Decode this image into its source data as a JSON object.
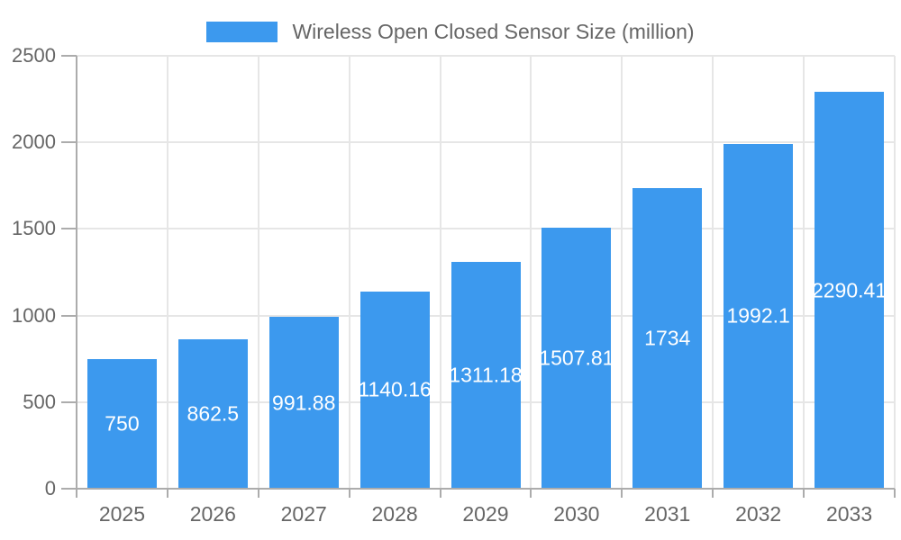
{
  "chart_data": {
    "type": "bar",
    "title": "Wireless Open Closed Sensor Size (million)",
    "legend_position": "top",
    "grid": true,
    "categories": [
      "2025",
      "2026",
      "2027",
      "2028",
      "2029",
      "2030",
      "2031",
      "2032",
      "2033"
    ],
    "series": [
      {
        "name": "Wireless Open Closed Sensor Size (million)",
        "values": [
          750,
          862.5,
          991.88,
          1140.16,
          1311.18,
          1507.81,
          1734,
          1992.1,
          2290.41
        ],
        "value_labels": [
          "750",
          "862.5",
          "991.88",
          "1140.16",
          "1311.18",
          "1507.81",
          "1734",
          "1992.1",
          "2290.41"
        ]
      }
    ],
    "xlabel": "",
    "ylabel": "",
    "ylim": [
      0,
      2500
    ],
    "y_ticks": [
      0,
      500,
      1000,
      1500,
      2000,
      2500
    ],
    "colors": {
      "bar": "#3C99EE",
      "grid": "#E6E6E6",
      "axis": "#ACACAC",
      "tick_text": "#666666",
      "value_label": "#FFFFFF"
    }
  }
}
